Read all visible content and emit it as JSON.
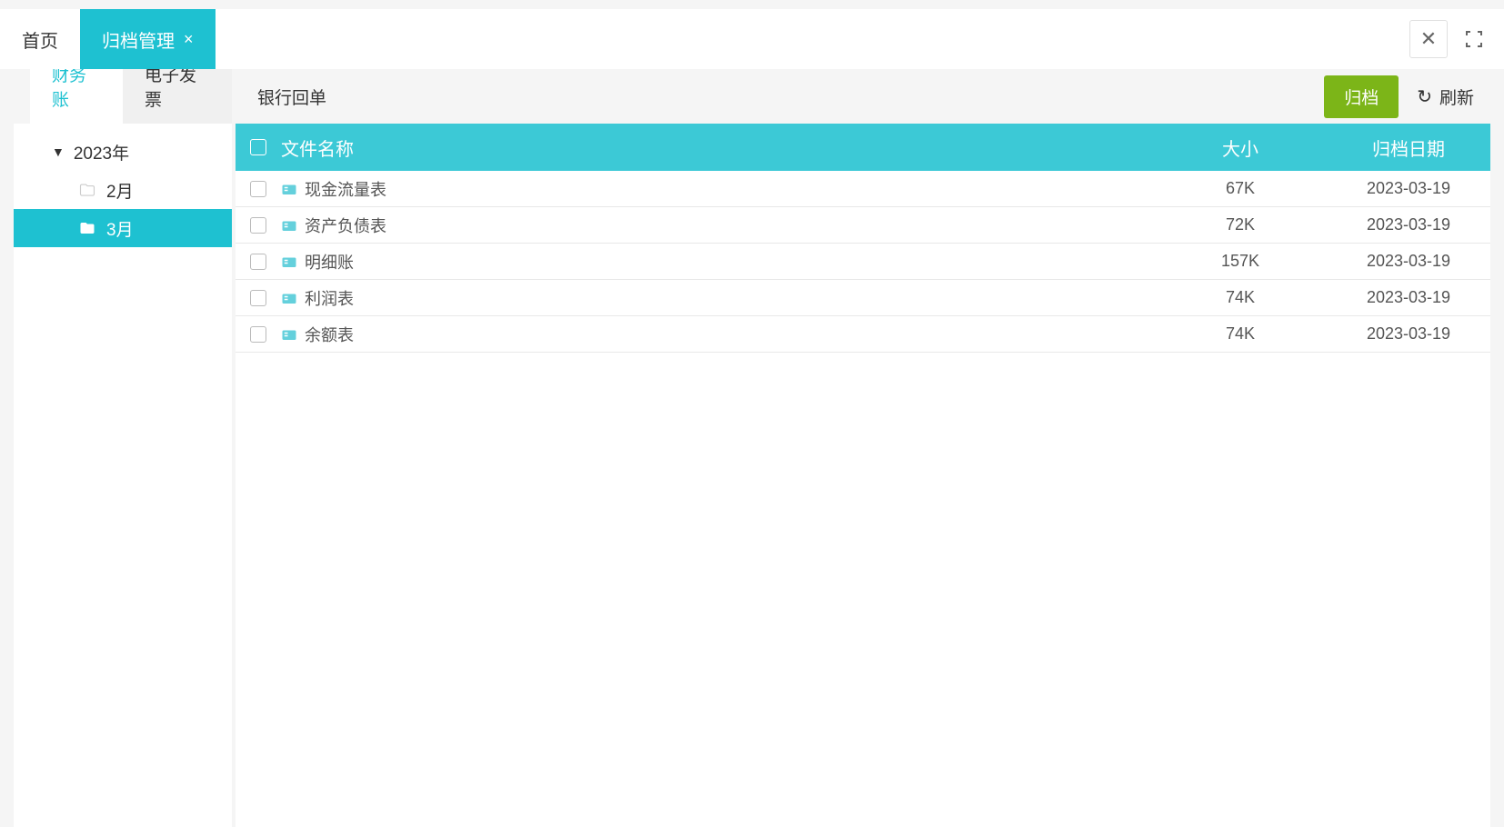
{
  "colors": {
    "primary": "#1ec1d1",
    "table_header": "#3cc9d6",
    "archive_btn": "#7cb518",
    "text": "#333333",
    "muted": "#555555",
    "border": "#e8e8e8",
    "bg": "#f5f5f5"
  },
  "top_tabs": {
    "home": "首页",
    "archive_mgmt": "归档管理"
  },
  "sub_tabs": {
    "finance_account": "财务账",
    "e_invoice": "电子发票",
    "bank_receipt": "银行回单"
  },
  "tree": {
    "year": "2023年",
    "months": {
      "feb": "2月",
      "mar": "3月"
    }
  },
  "toolbar": {
    "archive": "归档",
    "refresh": "刷新"
  },
  "table": {
    "headers": {
      "name": "文件名称",
      "size": "大小",
      "date": "归档日期"
    },
    "rows": [
      {
        "name": "现金流量表",
        "size": "67K",
        "date": "2023-03-19"
      },
      {
        "name": "资产负债表",
        "size": "72K",
        "date": "2023-03-19"
      },
      {
        "name": "明细账",
        "size": "157K",
        "date": "2023-03-19"
      },
      {
        "name": "利润表",
        "size": "74K",
        "date": "2023-03-19"
      },
      {
        "name": "余额表",
        "size": "74K",
        "date": "2023-03-19"
      }
    ]
  }
}
